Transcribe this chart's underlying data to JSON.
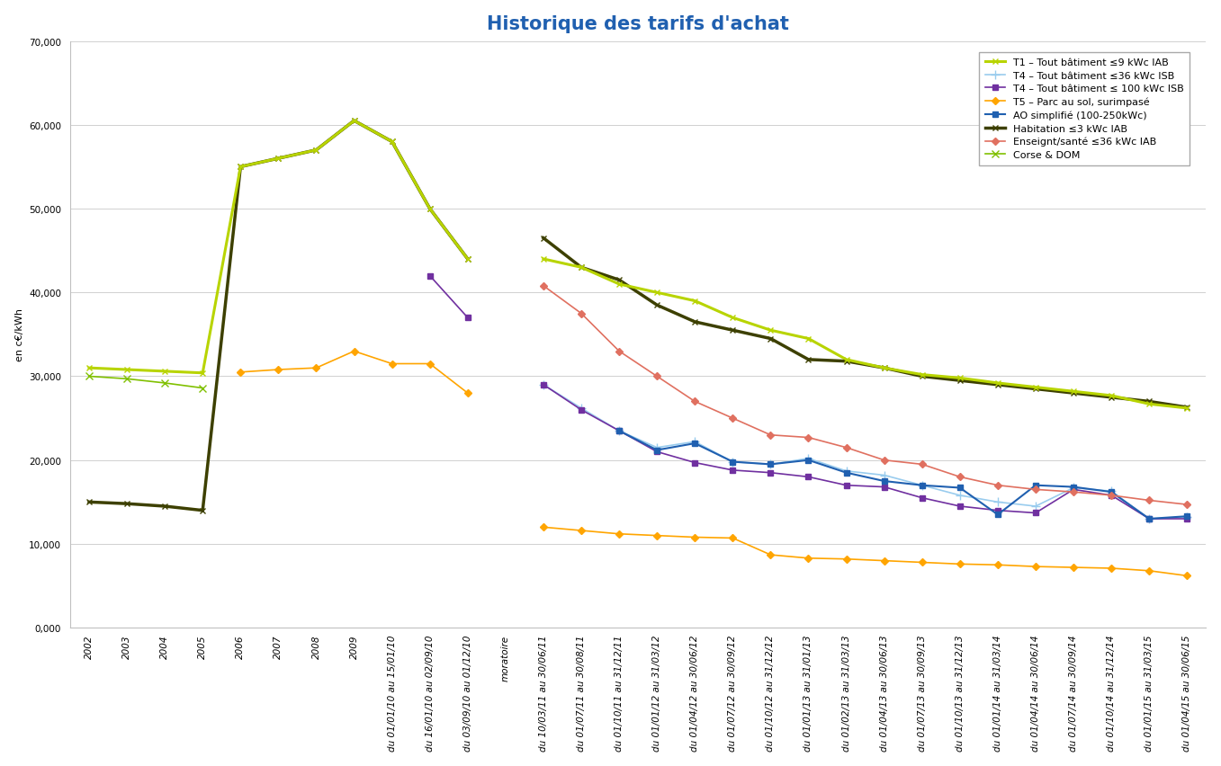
{
  "title": "Historique des tarifs d'achat",
  "ylabel": "en c€/kWh",
  "ylim": [
    0,
    70000
  ],
  "yticks": [
    0,
    10000,
    20000,
    30000,
    40000,
    50000,
    60000,
    70000
  ],
  "ytick_labels": [
    "0,000",
    "10,000",
    "20,000",
    "30,000",
    "40,000",
    "50,000",
    "60,000",
    "70,000"
  ],
  "x_labels": [
    "2002",
    "2003",
    "2004",
    "2005",
    "2006",
    "2007",
    "2008",
    "2009",
    "du 01/01/10 au 15/01/10",
    "du 16/01/10 au 02/09/10",
    "du 03/09/10 au 01/12/10",
    "moratoire",
    "du 10/03/11 au 30/06/11",
    "du 01/07/11 au 30/08/11",
    "du 01/10/11 au 31/12/11",
    "du 01/01/12 au 31/03/12",
    "du 01/04/12 au 30/06/12",
    "du 01/07/12 au 30/09/12",
    "du 01/10/12 au 31/12/12",
    "du 01/01/13 au 31/01/13",
    "du 01/02/13 au 31/03/13",
    "du 01/04/13 au 30/06/13",
    "du 01/07/13 au 30/09/13",
    "du 01/10/13 au 31/12/13",
    "du 01/01/14 au 31/03/14",
    "du 01/04/14 au 30/06/14",
    "du 01/07/14 au 30/09/14",
    "du 01/10/14 au 31/12/14",
    "du 01/01/15 au 31/03/15",
    "du 01/04/15 au 30/06/15"
  ],
  "series": [
    {
      "key": "T1",
      "label": "T1 – Tout bâtiment ≤9 kWc IAB",
      "color": "#b8d400",
      "linewidth": 2.2,
      "marker": "x",
      "markersize": 5,
      "linestyle": "-",
      "zorder": 5,
      "data": [
        31000,
        30800,
        30600,
        30400,
        55000,
        56000,
        57000,
        60500,
        58000,
        50000,
        44000,
        null,
        44000,
        43000,
        41000,
        40000,
        39000,
        37000,
        35500,
        34500,
        32000,
        31000,
        30200,
        29800,
        29200,
        28700,
        28200,
        27700,
        26700,
        26200
      ]
    },
    {
      "key": "T4_36",
      "label": "T4 – Tout bâtiment ≤36 kWc ISB",
      "color": "#99ccee",
      "linewidth": 1.2,
      "marker": "+",
      "markersize": 7,
      "linestyle": "-",
      "zorder": 3,
      "data": [
        null,
        null,
        null,
        null,
        null,
        null,
        null,
        null,
        null,
        null,
        null,
        null,
        29000,
        26200,
        23500,
        21500,
        22200,
        19800,
        19500,
        20200,
        18700,
        18200,
        17000,
        15800,
        15000,
        14500,
        16700,
        16300,
        13000,
        13200
      ]
    },
    {
      "key": "T4_100",
      "label": "T4 – Tout bâtiment ≤ 100 kWc ISB",
      "color": "#7030a0",
      "linewidth": 1.2,
      "marker": "s",
      "markersize": 5,
      "linestyle": "-",
      "zorder": 3,
      "data": [
        null,
        null,
        null,
        null,
        null,
        null,
        null,
        null,
        null,
        42000,
        37000,
        null,
        29000,
        26000,
        23500,
        21000,
        19700,
        18800,
        18500,
        18000,
        17000,
        16800,
        15500,
        14500,
        14000,
        13700,
        16500,
        15800,
        13000,
        13000
      ]
    },
    {
      "key": "T5",
      "label": "T5 – Parc au sol, surimpasé",
      "color": "#ffa500",
      "linewidth": 1.2,
      "marker": "D",
      "markersize": 4,
      "linestyle": "-",
      "zorder": 3,
      "data": [
        null,
        null,
        null,
        null,
        30500,
        30800,
        31000,
        33000,
        31500,
        31500,
        28000,
        null,
        12000,
        11600,
        11200,
        11000,
        10800,
        10700,
        8700,
        8300,
        8200,
        8000,
        7800,
        7600,
        7500,
        7300,
        7200,
        7100,
        6800,
        6200
      ]
    },
    {
      "key": "AO",
      "label": "AO simplifié (100-250kWc)",
      "color": "#2060b0",
      "linewidth": 1.5,
      "marker": "s",
      "markersize": 5,
      "linestyle": "-",
      "zorder": 3,
      "data": [
        null,
        null,
        null,
        null,
        null,
        null,
        null,
        null,
        null,
        null,
        null,
        null,
        null,
        null,
        23500,
        21200,
        22000,
        19800,
        19500,
        20000,
        18500,
        17500,
        17000,
        16700,
        13500,
        17000,
        16800,
        16200,
        13000,
        13300
      ]
    },
    {
      "key": "Habitation",
      "label": "Habitation ≤3 kWc IAB",
      "color": "#3d4000",
      "linewidth": 2.5,
      "marker": "x",
      "markersize": 5,
      "linestyle": "-",
      "zorder": 4,
      "data": [
        15000,
        14800,
        14500,
        14000,
        55000,
        56000,
        57000,
        60500,
        58000,
        50000,
        44000,
        null,
        46500,
        43000,
        41500,
        38500,
        36500,
        35500,
        34500,
        32000,
        31800,
        31000,
        30000,
        29500,
        29000,
        28500,
        28000,
        27500,
        27000,
        26300
      ]
    },
    {
      "key": "Enseignt",
      "label": "Enseignt/santé ≤36 kWc IAB",
      "color": "#e07060",
      "linewidth": 1.2,
      "marker": "D",
      "markersize": 4,
      "linestyle": "-",
      "zorder": 3,
      "data": [
        null,
        null,
        null,
        null,
        null,
        null,
        null,
        null,
        null,
        null,
        null,
        null,
        40800,
        37500,
        33000,
        30000,
        27000,
        25000,
        23000,
        22700,
        21500,
        20000,
        19500,
        18000,
        17000,
        16500,
        16200,
        15800,
        15200,
        14700
      ]
    },
    {
      "key": "Corse",
      "label": "Corse & DOM",
      "color": "#80c000",
      "linewidth": 1.2,
      "marker": "x",
      "markersize": 6,
      "linestyle": "-",
      "zorder": 3,
      "data": [
        30000,
        29700,
        29200,
        28600,
        null,
        null,
        null,
        null,
        null,
        null,
        null,
        null,
        null,
        null,
        null,
        null,
        null,
        null,
        null,
        null,
        null,
        null,
        null,
        null,
        null,
        null,
        null,
        null,
        null,
        null
      ]
    }
  ],
  "background_color": "#ffffff",
  "title_color": "#2060b0",
  "title_fontsize": 15,
  "legend_fontsize": 8,
  "axis_label_fontsize": 8,
  "tick_fontsize": 7.5
}
